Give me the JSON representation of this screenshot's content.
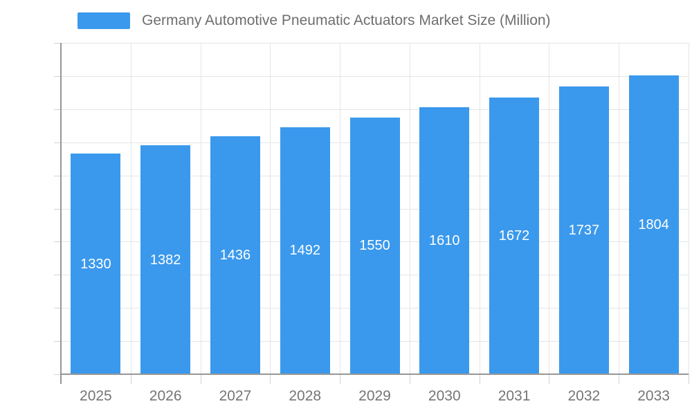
{
  "legend": {
    "label": "Germany Automotive Pneumatic Actuators Market Size (Million)"
  },
  "chart_data": {
    "type": "bar",
    "title": "Germany Automotive Pneumatic Actuators Market Size (Million)",
    "categories": [
      "2025",
      "2026",
      "2027",
      "2028",
      "2029",
      "2030",
      "2031",
      "2032",
      "2033"
    ],
    "values": [
      1330,
      1382,
      1436,
      1492,
      1550,
      1610,
      1672,
      1737,
      1804
    ],
    "xlabel": "",
    "ylabel": "",
    "ylim": [
      0,
      2000
    ],
    "ytick_step": 200,
    "grid": true,
    "legend_position": "top",
    "colors": {
      "bar": "#3a99ec",
      "bar_label": "#ffffff",
      "axis_text": "#757575",
      "legend_text": "#6e6e6e",
      "gridline": "#e5e5e5",
      "tick": "#d2d2d2",
      "axis_line": "#969696",
      "background": "#ffffff"
    }
  }
}
